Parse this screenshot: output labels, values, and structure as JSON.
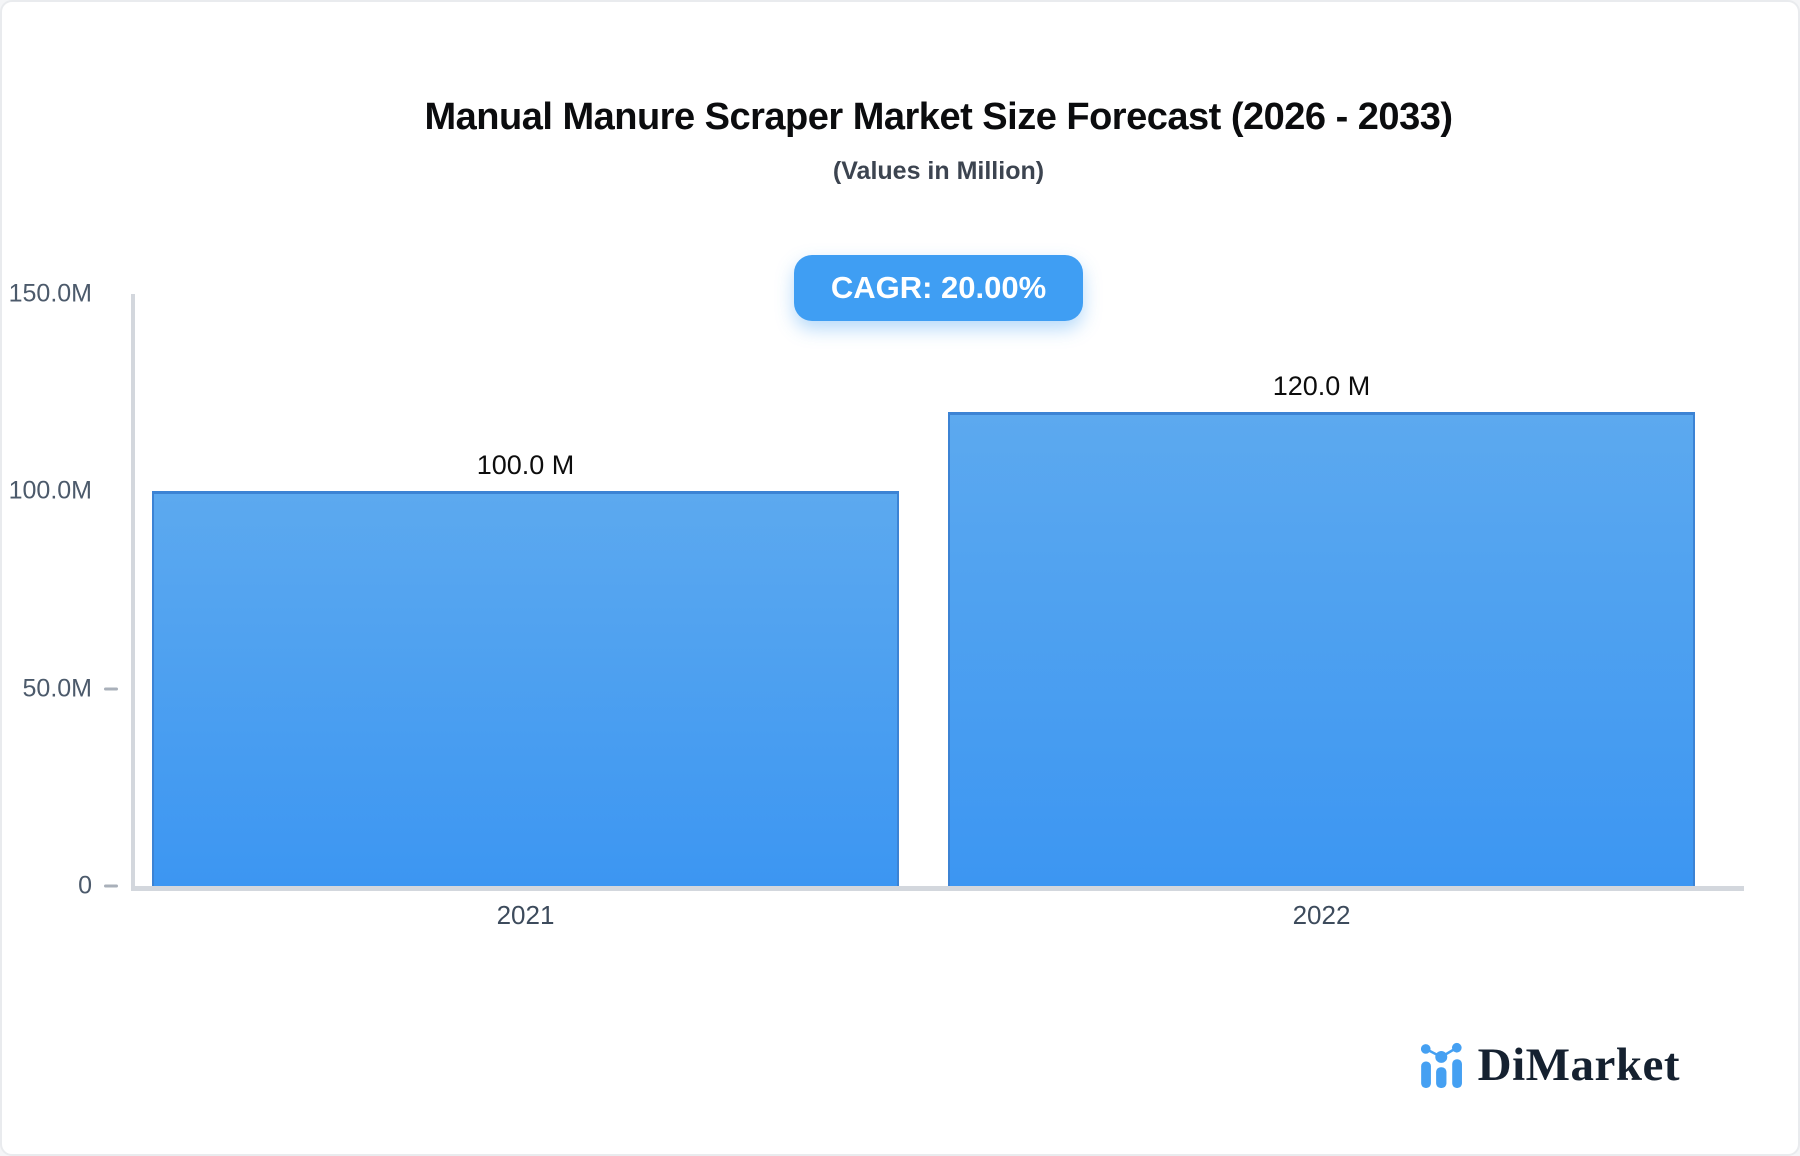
{
  "header": {
    "title": "Manual Manure Scraper Market Size Forecast (2026 - 2033)",
    "subtitle": "(Values in Million)",
    "cagr_badge": "CAGR: 20.00%"
  },
  "chart_data": {
    "type": "bar",
    "title": "Manual Manure Scraper Market Size Forecast (2026 - 2033)",
    "subtitle": "(Values in Million)",
    "cagr_percent": 20.0,
    "categories": [
      "2021",
      "2022"
    ],
    "values": [
      100.0,
      120.0
    ],
    "value_labels": [
      "100.0 M",
      "120.0 M"
    ],
    "unit": "Million",
    "xlabel": "",
    "ylabel": "",
    "ylim": [
      0,
      150
    ],
    "yticks": [
      {
        "label": "150.0M",
        "value": 150,
        "dash": false
      },
      {
        "label": "100.0M",
        "value": 100,
        "dash": false
      },
      {
        "label": "50.0M",
        "value": 50,
        "dash": true
      },
      {
        "label": "0",
        "value": 0,
        "dash": true
      }
    ],
    "grid": false,
    "legend": false,
    "bar_color_top": "#5ca9ef",
    "bar_color_bottom": "#3c96f2",
    "bar_border_color": "#3c83d4"
  },
  "footer": {
    "brand": "DiMarket"
  },
  "colors": {
    "badge_blue": "#3f9ef3",
    "axis_gray": "#d3d7dd",
    "tick_text": "#4c5a6b",
    "logo_blue": "#45a0f2",
    "logo_navy": "#152130"
  }
}
